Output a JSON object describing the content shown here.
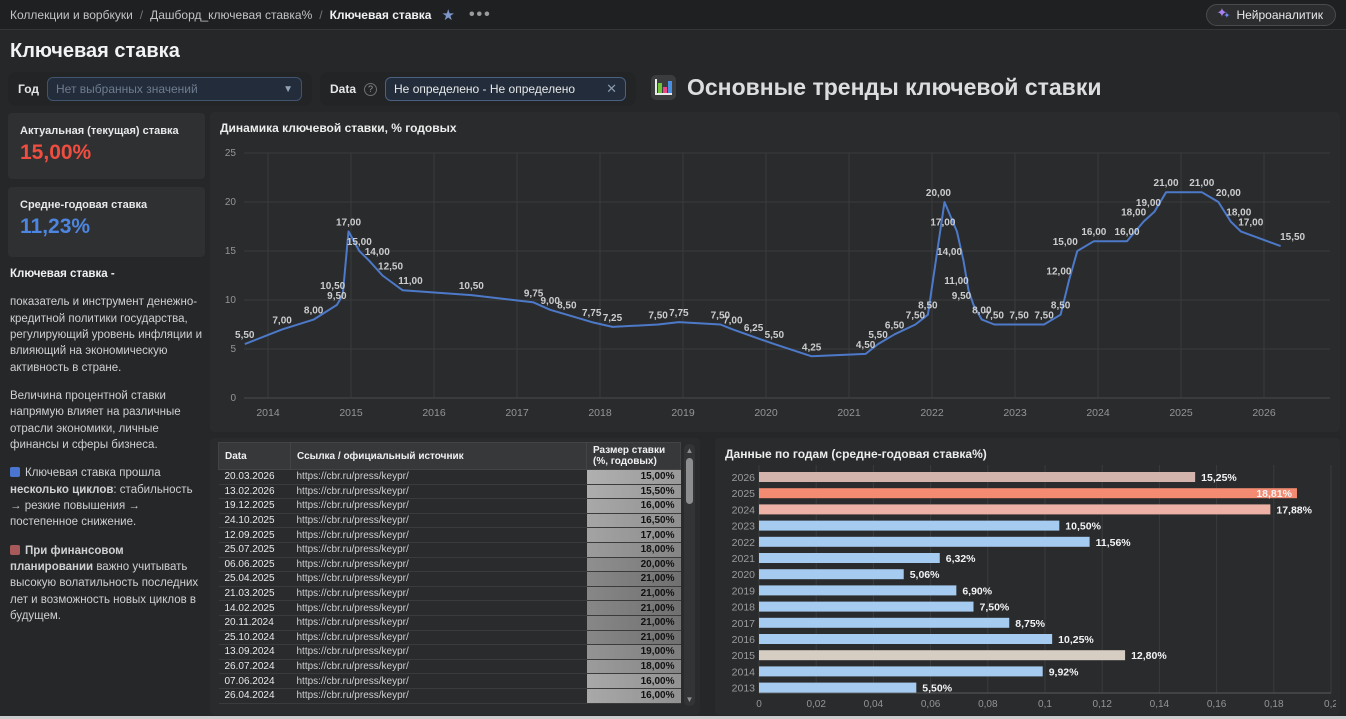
{
  "topbar": {
    "breadcrumbs": [
      "Коллекции и ворбкуки",
      "Дашборд_ключевая ставка%",
      "Ключевая ставка"
    ],
    "neuro_button": "Нейроаналитик"
  },
  "page": {
    "title": "Ключевая ставка"
  },
  "filters": {
    "year_label": "Год",
    "year_placeholder": "Нет выбранных значений",
    "data_label": "Data",
    "data_value": "Не определено - Не определено"
  },
  "dash_header": {
    "title": "Основные тренды ключевой ставки"
  },
  "cards": {
    "current": {
      "label": "Актуальная (текущая) ставка",
      "value": "15,00%",
      "color": "#ef4d3f"
    },
    "average": {
      "label": "Средне-годовая ставка",
      "value": "11,23%",
      "color": "#4d86e0"
    }
  },
  "info": {
    "heading": "Ключевая ставка -",
    "p1": "показатель и инструмент денежно-кредитной политики государства, регулирующий уровень инфляции и влияющий на экономическую активность в стране.",
    "p2": "Величина процентной ставки напрямую влияет на различные отрасли экономики, личные финансы и сферы бизнеса.",
    "b1_pre": "Ключевая ставка прошла ",
    "b1_bold": "несколько циклов",
    "b1_post": ": стабильность → резкие повышения → постепенное снижение.",
    "b2_bold": "При финансовом планировании",
    "b2_post": " важно учитывать высокую волатильность последних лет и возможность новых циклов в будущем."
  },
  "chart_data": [
    {
      "type": "line",
      "title": "Динамика ключевой ставки, % годовых",
      "ylim": [
        0,
        25
      ],
      "yticks": [
        0,
        5,
        10,
        15,
        20,
        25
      ],
      "xticks": [
        2014,
        2015,
        2016,
        2017,
        2018,
        2019,
        2020,
        2021,
        2022,
        2023,
        2024,
        2025,
        2026
      ],
      "line_color": "#4d79c9",
      "grid": true,
      "points": [
        {
          "x": 2013.72,
          "y": 5.5,
          "label": "5,50"
        },
        {
          "x": 2014.17,
          "y": 7.0,
          "label": "7,00"
        },
        {
          "x": 2014.55,
          "y": 8.0,
          "label": "8,00"
        },
        {
          "x": 2014.83,
          "y": 9.5,
          "label": "9,50"
        },
        {
          "x": 2014.9,
          "y": 10.5,
          "label": "10,50",
          "dx": -10
        },
        {
          "x": 2014.97,
          "y": 17.0,
          "label": "17,00"
        },
        {
          "x": 2015.1,
          "y": 15.0,
          "label": "15,00"
        },
        {
          "x": 2015.22,
          "y": 14.0,
          "label": "14,00",
          "dx": 8
        },
        {
          "x": 2015.38,
          "y": 12.5,
          "label": "12,50",
          "dx": 8
        },
        {
          "x": 2015.62,
          "y": 11.0,
          "label": "11,00",
          "dx": 8
        },
        {
          "x": 2016.45,
          "y": 10.5,
          "label": "10,50"
        },
        {
          "x": 2017.2,
          "y": 9.75,
          "label": "9,75"
        },
        {
          "x": 2017.4,
          "y": 9.0,
          "label": "9,00"
        },
        {
          "x": 2017.6,
          "y": 8.5,
          "label": "8,50"
        },
        {
          "x": 2017.9,
          "y": 7.75,
          "label": "7,75"
        },
        {
          "x": 2018.15,
          "y": 7.25,
          "label": "7,25"
        },
        {
          "x": 2018.7,
          "y": 7.5,
          "label": "7,50"
        },
        {
          "x": 2018.95,
          "y": 7.75,
          "label": "7,75"
        },
        {
          "x": 2019.45,
          "y": 7.5,
          "label": "7,50"
        },
        {
          "x": 2019.6,
          "y": 7.0,
          "label": "7,00"
        },
        {
          "x": 2019.85,
          "y": 6.25,
          "label": "6,25"
        },
        {
          "x": 2020.1,
          "y": 5.5,
          "label": "5,50"
        },
        {
          "x": 2020.55,
          "y": 4.25,
          "label": "4,25"
        },
        {
          "x": 2021.2,
          "y": 4.5,
          "label": "4,50"
        },
        {
          "x": 2021.35,
          "y": 5.5,
          "label": "5,50"
        },
        {
          "x": 2021.55,
          "y": 6.5,
          "label": "6,50"
        },
        {
          "x": 2021.8,
          "y": 7.5,
          "label": "7,50"
        },
        {
          "x": 2021.95,
          "y": 8.5,
          "label": "8,50"
        },
        {
          "x": 2022.15,
          "y": 20.0,
          "label": "20,00",
          "dx": -6
        },
        {
          "x": 2022.3,
          "y": 17.0,
          "label": "17,00",
          "dx": -14
        },
        {
          "x": 2022.38,
          "y": 14.0,
          "label": "14,00",
          "dx": -14
        },
        {
          "x": 2022.44,
          "y": 11.0,
          "label": "11,00",
          "dx": -12
        },
        {
          "x": 2022.5,
          "y": 9.5,
          "label": "9,50",
          "dx": -12
        },
        {
          "x": 2022.6,
          "y": 8.0,
          "label": "8,00"
        },
        {
          "x": 2022.75,
          "y": 7.5,
          "label": "7,50"
        },
        {
          "x": 2023.05,
          "y": 7.5,
          "label": "7,50"
        },
        {
          "x": 2023.35,
          "y": 7.5,
          "label": "7,50"
        },
        {
          "x": 2023.55,
          "y": 8.5,
          "label": "8,50"
        },
        {
          "x": 2023.65,
          "y": 12.0,
          "label": "12,00",
          "dx": -10
        },
        {
          "x": 2023.75,
          "y": 15.0,
          "label": "15,00",
          "dx": -12
        },
        {
          "x": 2023.95,
          "y": 16.0,
          "label": "16,00"
        },
        {
          "x": 2024.35,
          "y": 16.0,
          "label": "16,00"
        },
        {
          "x": 2024.55,
          "y": 18.0,
          "label": "18,00",
          "dx": -10
        },
        {
          "x": 2024.68,
          "y": 19.0,
          "label": "19,00",
          "dx": -6
        },
        {
          "x": 2024.82,
          "y": 21.0,
          "label": "21,00"
        },
        {
          "x": 2025.25,
          "y": 21.0,
          "label": "21,00"
        },
        {
          "x": 2025.45,
          "y": 20.0,
          "label": "20,00",
          "dx": 10
        },
        {
          "x": 2025.6,
          "y": 18.0,
          "label": "18,00",
          "dx": 8
        },
        {
          "x": 2025.72,
          "y": 17.0,
          "label": "17,00",
          "dx": 10
        },
        {
          "x": 2026.2,
          "y": 15.5,
          "label": "15,50",
          "dx": 12
        }
      ]
    },
    {
      "type": "bar",
      "orientation": "horizontal",
      "title": "Данные по годам (средне-годовая ставка%)",
      "xlim": [
        0,
        0.2
      ],
      "xtick_labels": [
        "0",
        "0,02",
        "0,04",
        "0,06",
        "0,08",
        "0,1",
        "0,12",
        "0,14",
        "0,16",
        "0,18",
        "0,2"
      ],
      "categories": [
        "2026",
        "2025",
        "2024",
        "2023",
        "2022",
        "2021",
        "2020",
        "2019",
        "2018",
        "2017",
        "2016",
        "2015",
        "2014",
        "2013"
      ],
      "values": [
        0.1525,
        0.1881,
        0.1788,
        0.105,
        0.1156,
        0.0632,
        0.0506,
        0.069,
        0.075,
        0.0875,
        0.1025,
        0.128,
        0.0992,
        0.055
      ],
      "labels": [
        "15,25%",
        "18,81%",
        "17,88%",
        "10,50%",
        "11,56%",
        "6,32%",
        "5,06%",
        "6,90%",
        "7,50%",
        "8,75%",
        "10,25%",
        "12,80%",
        "9,92%",
        "5,50%"
      ],
      "colors": [
        "#d3b4ad",
        "#f28b72",
        "#edb2a5",
        "#a6cbf0",
        "#a6cbf0",
        "#a6cbf0",
        "#a6cbf0",
        "#a6cbf0",
        "#a6cbf0",
        "#a6cbf0",
        "#a6cbf0",
        "#d6cdc3",
        "#a6cbf0",
        "#a6cbf0"
      ],
      "grid": true,
      "legend": false
    }
  ],
  "table": {
    "headers": [
      "Data",
      "Ссылка / официальный источник",
      "Размер ставки (%, годовых)"
    ],
    "rows": [
      {
        "date": "20.03.2026",
        "link": "https://cbr.ru/press/keypr/",
        "rate": "15,00%",
        "value": 15.0
      },
      {
        "date": "13.02.2026",
        "link": "https://cbr.ru/press/keypr/",
        "rate": "15,50%",
        "value": 15.5
      },
      {
        "date": "19.12.2025",
        "link": "https://cbr.ru/press/keypr/",
        "rate": "16,00%",
        "value": 16.0
      },
      {
        "date": "24.10.2025",
        "link": "https://cbr.ru/press/keypr/",
        "rate": "16,50%",
        "value": 16.5
      },
      {
        "date": "12.09.2025",
        "link": "https://cbr.ru/press/keypr/",
        "rate": "17,00%",
        "value": 17.0
      },
      {
        "date": "25.07.2025",
        "link": "https://cbr.ru/press/keypr/",
        "rate": "18,00%",
        "value": 18.0
      },
      {
        "date": "06.06.2025",
        "link": "https://cbr.ru/press/keypr/",
        "rate": "20,00%",
        "value": 20.0
      },
      {
        "date": "25.04.2025",
        "link": "https://cbr.ru/press/keypr/",
        "rate": "21,00%",
        "value": 21.0
      },
      {
        "date": "21.03.2025",
        "link": "https://cbr.ru/press/keypr/",
        "rate": "21,00%",
        "value": 21.0
      },
      {
        "date": "14.02.2025",
        "link": "https://cbr.ru/press/keypr/",
        "rate": "21,00%",
        "value": 21.0
      },
      {
        "date": "20.11.2024",
        "link": "https://cbr.ru/press/keypr/",
        "rate": "21,00%",
        "value": 21.0
      },
      {
        "date": "25.10.2024",
        "link": "https://cbr.ru/press/keypr/",
        "rate": "21,00%",
        "value": 21.0
      },
      {
        "date": "13.09.2024",
        "link": "https://cbr.ru/press/keypr/",
        "rate": "19,00%",
        "value": 19.0
      },
      {
        "date": "26.07.2024",
        "link": "https://cbr.ru/press/keypr/",
        "rate": "18,00%",
        "value": 18.0
      },
      {
        "date": "07.06.2024",
        "link": "https://cbr.ru/press/keypr/",
        "rate": "16,00%",
        "value": 16.0
      },
      {
        "date": "26.04.2024",
        "link": "https://cbr.ru/press/keypr/",
        "rate": "16,00%",
        "value": 16.0
      }
    ]
  }
}
